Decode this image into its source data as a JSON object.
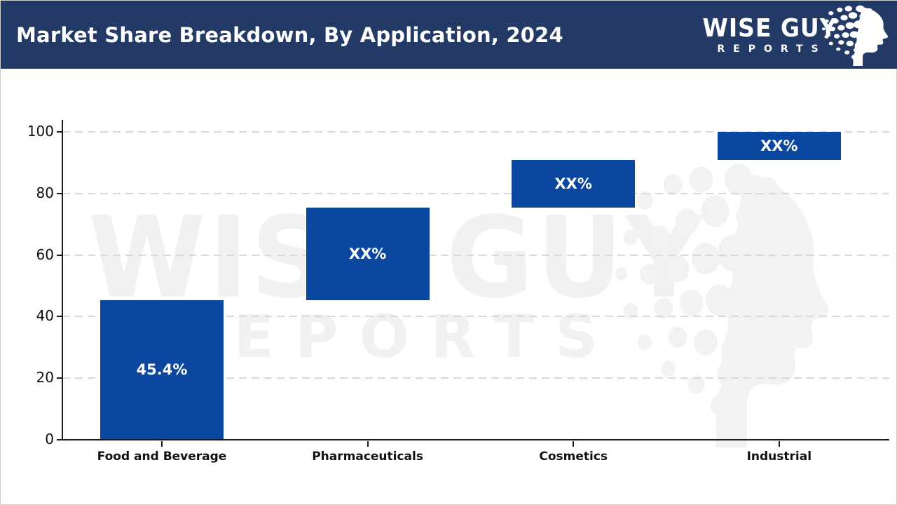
{
  "header": {
    "title": "Market Share Breakdown, By Application, 2024",
    "logo": {
      "line1": "WISE GUY",
      "line2": "REPORTS"
    }
  },
  "watermark": {
    "line1": "WISE GUY",
    "line2": "REPORTS"
  },
  "chart_data": {
    "type": "bar",
    "subtype": "waterfall",
    "title": "Market Share Breakdown, By Application, 2024",
    "categories": [
      "Food and Beverage",
      "Pharmaceuticals",
      "Cosmetics",
      "Industrial"
    ],
    "segments": [
      {
        "category": "Food and Beverage",
        "start": 0,
        "end": 45.4,
        "label": "45.4%"
      },
      {
        "category": "Pharmaceuticals",
        "start": 45.4,
        "end": 75.5,
        "label": "XX%"
      },
      {
        "category": "Cosmetics",
        "start": 75.5,
        "end": 90.9,
        "label": "XX%"
      },
      {
        "category": "Industrial",
        "start": 90.9,
        "end": 100,
        "label": "XX%"
      }
    ],
    "yticks": [
      0,
      20,
      40,
      60,
      80,
      100
    ],
    "ylim": [
      0,
      100
    ],
    "xlabel": "",
    "ylabel": "",
    "grid": "horizontal-dashed",
    "legend": "none",
    "bar_color": "#0b479e",
    "value_label_color": "#ffffff"
  },
  "colors": {
    "header_bg": "#233a66",
    "bar": "#0b479e",
    "grid": "#d9d9d9",
    "axis": "#1a1a1a",
    "watermark": "#f1f1f1"
  }
}
